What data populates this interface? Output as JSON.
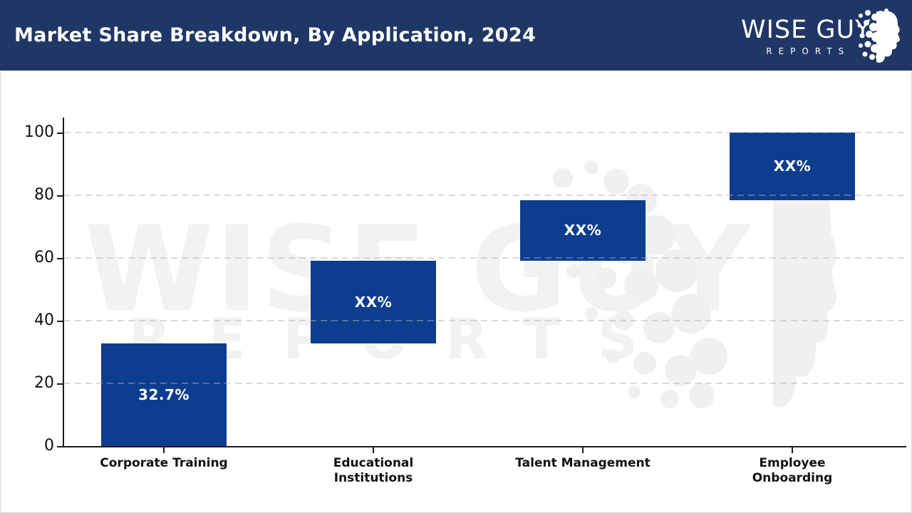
{
  "header": {
    "title": "Market Share Breakdown, By Application, 2024",
    "bg_color": "#1f3766",
    "logo": {
      "line1": "WISE GUY",
      "line2": "REPORTS"
    }
  },
  "watermark": {
    "line1": "WISE GUY",
    "line2": "REPORTS"
  },
  "chart_data": {
    "type": "bar",
    "subtype": "waterfall",
    "title": "Market Share Breakdown, By Application, 2024",
    "categories": [
      "Corporate Training",
      "Educational Institutions",
      "Talent Management",
      "Employee Onboarding"
    ],
    "segments": [
      {
        "category_lines": [
          "Corporate Training"
        ],
        "start": 0,
        "end": 32.7,
        "label": "32.7%"
      },
      {
        "category_lines": [
          "Educational",
          "Institutions"
        ],
        "start": 32.7,
        "end": 59.1,
        "label": "XX%"
      },
      {
        "category_lines": [
          "Talent Management"
        ],
        "start": 59.1,
        "end": 78.5,
        "label": "XX%"
      },
      {
        "category_lines": [
          "Employee",
          "Onboarding"
        ],
        "start": 78.5,
        "end": 100,
        "label": "XX%"
      }
    ],
    "ylim": [
      0,
      100
    ],
    "yticks": [
      0,
      20,
      40,
      60,
      80,
      100
    ],
    "xlabel": "",
    "ylabel": "",
    "bar_color": "#0d3d8e",
    "bar_label_color": "#ffffff",
    "grid": "horizontal-dashed-above-bars",
    "legend": "none"
  }
}
